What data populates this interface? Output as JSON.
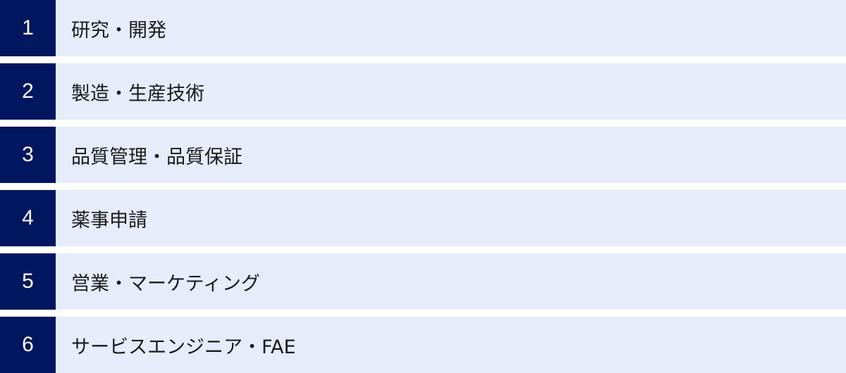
{
  "colors": {
    "number_bg": "#00175f",
    "row_bg": "#e6ecfa"
  },
  "items": [
    {
      "number": "1",
      "label": "研究・開発"
    },
    {
      "number": "2",
      "label": "製造・生産技術"
    },
    {
      "number": "3",
      "label": "品質管理・品質保証"
    },
    {
      "number": "4",
      "label": "薬事申請"
    },
    {
      "number": "5",
      "label": "営業・マーケティング"
    },
    {
      "number": "6",
      "label": "サービスエンジニア・FAE"
    }
  ]
}
